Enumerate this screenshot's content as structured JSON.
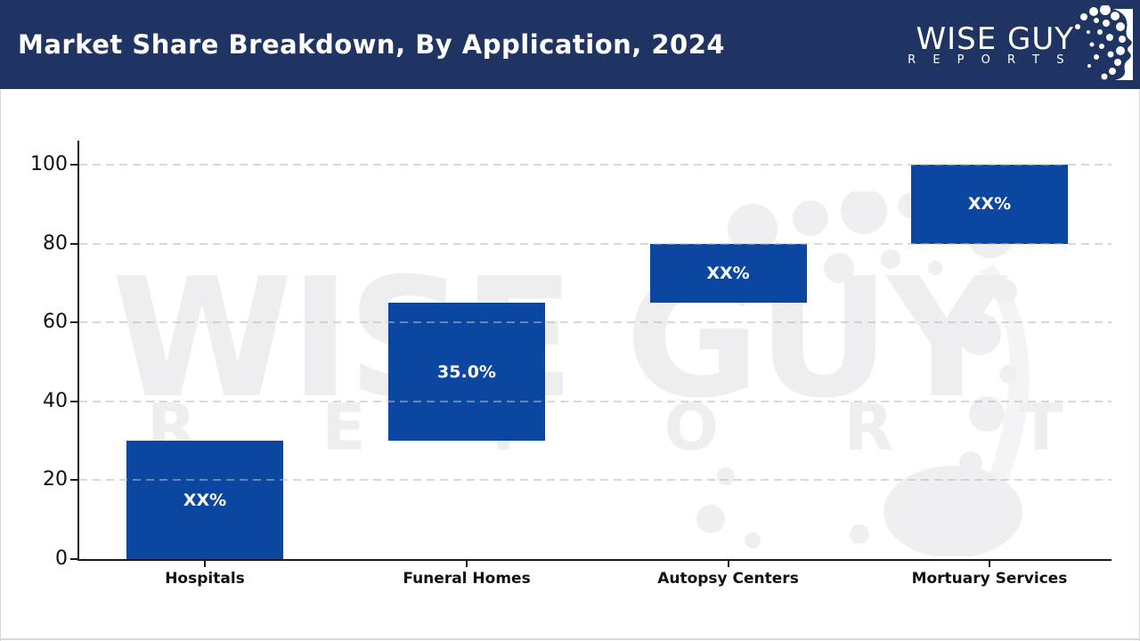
{
  "header": {
    "title": "Market Share Breakdown, By Application, 2024",
    "logo": {
      "line1": "WISE GUY",
      "line2": "R E P O R T S"
    }
  },
  "watermark": {
    "line1": "WISE GUY",
    "line2": "R E P O R T S"
  },
  "colors": {
    "header_bg": "#1f3462",
    "bar": "#0b47a0",
    "bar_label": "#ffffff",
    "grid": "#d9d9d9",
    "axis": "#1a1a1a",
    "watermark": "#eeeef1"
  },
  "chart_data": {
    "type": "bar",
    "subtype": "waterfall",
    "title": "Market Share Breakdown, By Application, 2024",
    "xlabel": "",
    "ylabel": "",
    "categories": [
      "Hospitals",
      "Funeral Homes",
      "Autopsy Centers",
      "Mortuary Services"
    ],
    "series": [
      {
        "name": "Market Share %",
        "segments": [
          {
            "category": "Hospitals",
            "start": 0,
            "end": 30,
            "label": "XX%"
          },
          {
            "category": "Funeral Homes",
            "start": 30,
            "end": 65,
            "label": "35.0%"
          },
          {
            "category": "Autopsy Centers",
            "start": 65,
            "end": 80,
            "label": "XX%"
          },
          {
            "category": "Mortuary Services",
            "start": 80,
            "end": 100,
            "label": "XX%"
          }
        ]
      }
    ],
    "ylim": [
      0,
      100
    ],
    "yticks": [
      0,
      20,
      40,
      60,
      80,
      100
    ],
    "grid": "horizontal dashed",
    "legend": "none"
  }
}
